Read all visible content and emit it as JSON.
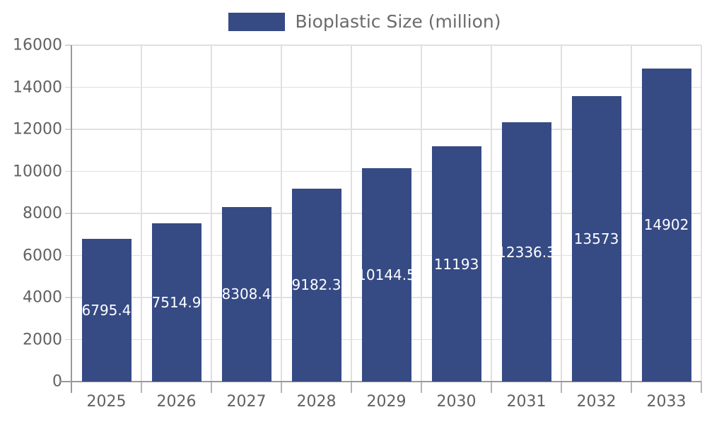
{
  "chart_data": {
    "type": "bar",
    "title": "",
    "legend": "Bioplastic Size (million)",
    "legend_position": "top",
    "categories": [
      "2025",
      "2026",
      "2027",
      "2028",
      "2029",
      "2030",
      "2031",
      "2032",
      "2033"
    ],
    "values": [
      6795.4,
      7514.9,
      8308.4,
      9182.3,
      10144.5,
      11193,
      12336.3,
      13573,
      14902
    ],
    "value_labels": [
      "6795.4",
      "7514.9",
      "8308.4",
      "9182.3",
      "10144.5",
      "11193",
      "12336.3",
      "13573",
      "14902"
    ],
    "value_labels_visible": true,
    "value_label_position": "inside-middle",
    "xlabel": "",
    "ylabel": "",
    "ylim": [
      0,
      16000
    ],
    "ytick_step": 2000,
    "ytick_labels": [
      "0",
      "2000",
      "4000",
      "6000",
      "8000",
      "10000",
      "12000",
      "14000",
      "16000"
    ],
    "grid": true,
    "colors": {
      "bar": "#364A84",
      "bar_label": "#ffffff",
      "gridline": "#e0e0e0",
      "axis_line": "#9a9a9a",
      "tick_label": "#616161",
      "legend_text": "#6b6b6b",
      "background": "#ffffff"
    }
  }
}
